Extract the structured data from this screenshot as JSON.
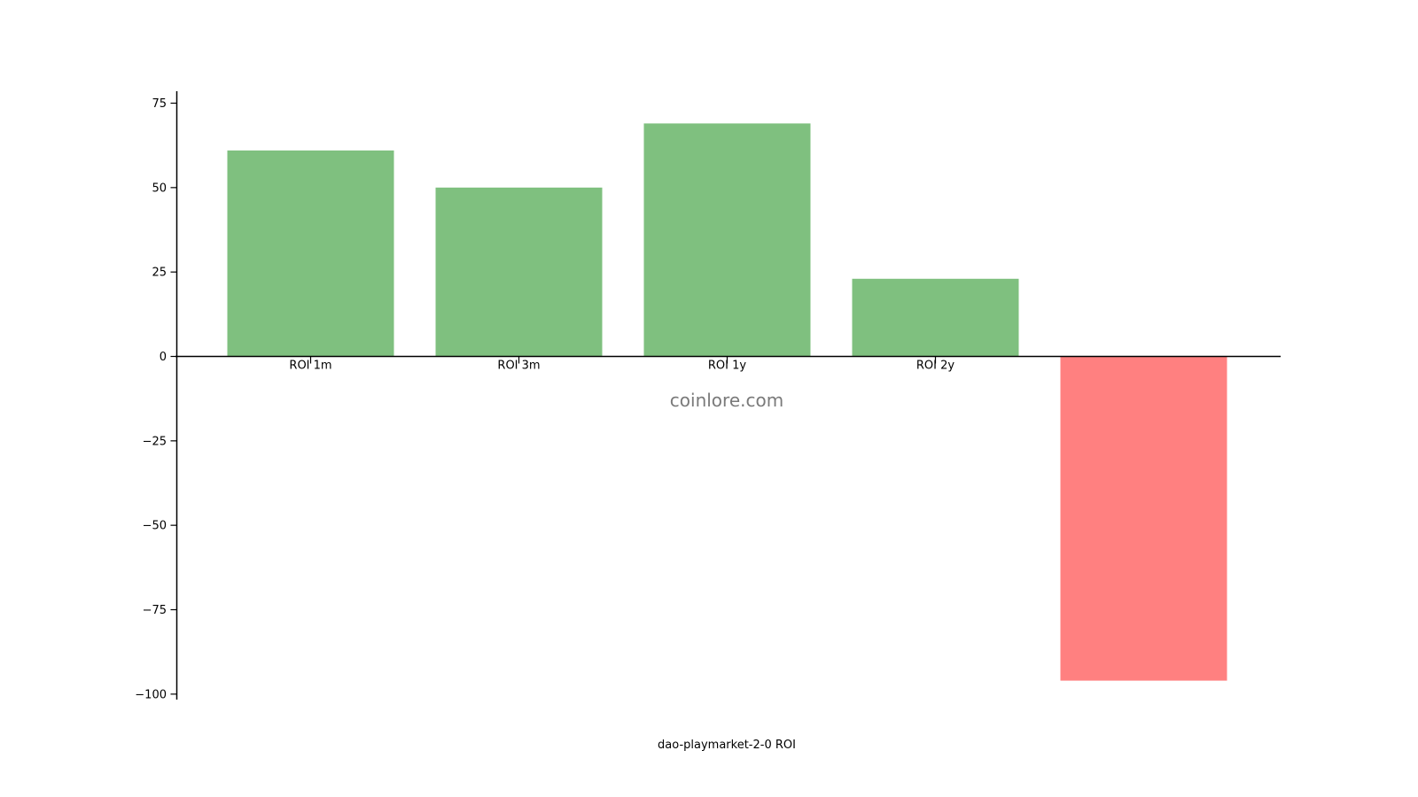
{
  "page": {
    "background_color": "#ffffff"
  },
  "chart_data": {
    "type": "bar",
    "title": "dao-playmarket-2-0 ROI",
    "watermark": "coinlore.com",
    "categories": [
      "ROI 1m",
      "ROI 3m",
      "ROI 1y",
      "ROI 2y",
      ""
    ],
    "values": [
      61,
      50,
      69,
      23,
      -96
    ],
    "bar_colors": [
      "#7fc07f",
      "#7fc07f",
      "#7fc07f",
      "#7fc07f",
      "#ff8080"
    ],
    "positive_color": "#7fc07f",
    "negative_color": "#ff8080",
    "xlabel": "",
    "ylabel": "",
    "ylim": [
      -101,
      78.5
    ],
    "yticks": [
      75,
      50,
      25,
      0,
      -25,
      -50,
      -75,
      -100
    ],
    "ytick_labels": [
      "75",
      "50",
      "25",
      "0",
      "−25",
      "−50",
      "−75",
      "−100"
    ],
    "grid": false,
    "legend": "none",
    "axis_color": "#000000",
    "tick_label_color": "#000000",
    "title_color": "#000000",
    "watermark_color": "#7a7a7a"
  }
}
